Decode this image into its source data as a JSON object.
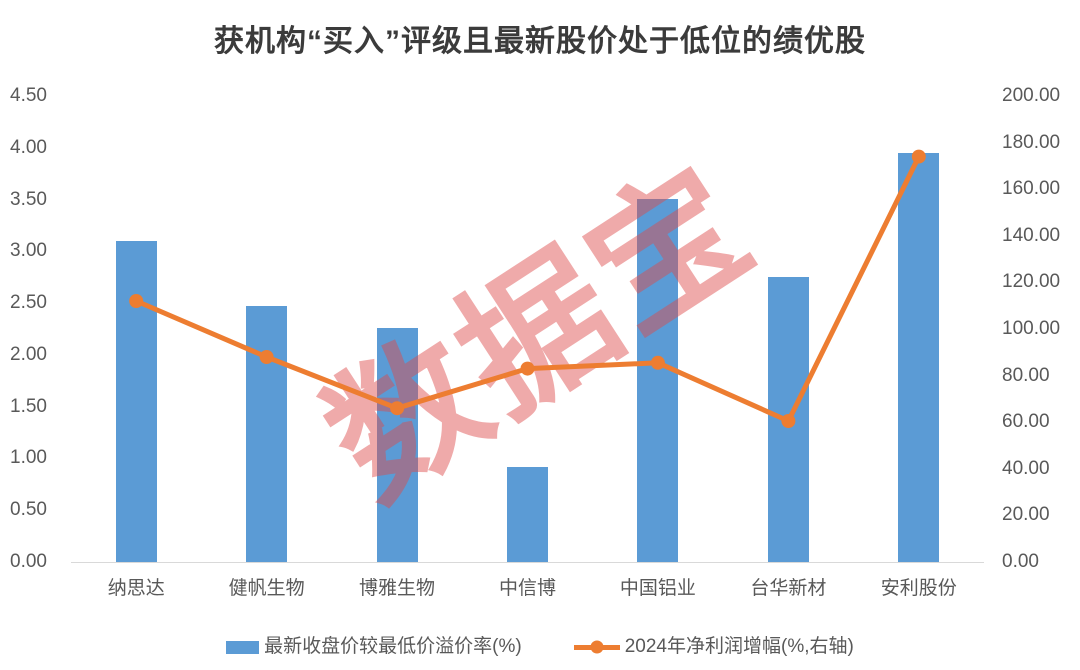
{
  "title": "获机构“买入”评级且最新股价处于低位的绩优股",
  "watermark": "数据宝",
  "colors": {
    "bar": "#5B9BD5",
    "line": "#ED7D31",
    "watermark_red": "#DD4B4B",
    "title_text": "#3B3B3B",
    "axis_text": "#595959",
    "axis_line": "#D9D9D9"
  },
  "chart_data": {
    "type": "bar",
    "subtype": "combo-bar-line-dual-axis",
    "title": "获机构“买入”评级且最新股价处于低位的绩优股",
    "categories": [
      "纳思达",
      "健帆生物",
      "博雅生物",
      "中信博",
      "中国铝业",
      "台华新材",
      "安利股份"
    ],
    "series": [
      {
        "name": "最新收盘价较最低价溢价率(%)",
        "type": "bar",
        "axis": "left",
        "color": "#5B9BD5",
        "values": [
          3.1,
          2.47,
          2.26,
          0.92,
          3.51,
          2.75,
          3.95
        ]
      },
      {
        "name": "2024年净利润增幅(%,右轴)",
        "type": "line",
        "axis": "right",
        "color": "#ED7D31",
        "values": [
          112,
          88,
          66,
          83,
          85.5,
          60.5,
          174
        ]
      }
    ],
    "axes": {
      "left": {
        "min": 0,
        "max": 4.5,
        "ticks": [
          "4.50",
          "4.00",
          "3.50",
          "3.00",
          "2.50",
          "2.00",
          "1.50",
          "1.00",
          "0.50",
          "0.00"
        ]
      },
      "right": {
        "min": 0,
        "max": 200,
        "ticks": [
          "200.00",
          "180.00",
          "160.00",
          "140.00",
          "120.00",
          "100.00",
          "80.00",
          "60.00",
          "40.00",
          "20.00",
          "0.00"
        ]
      }
    },
    "grid": false,
    "legend_position": "bottom",
    "xlabel": "",
    "ylabel": ""
  }
}
